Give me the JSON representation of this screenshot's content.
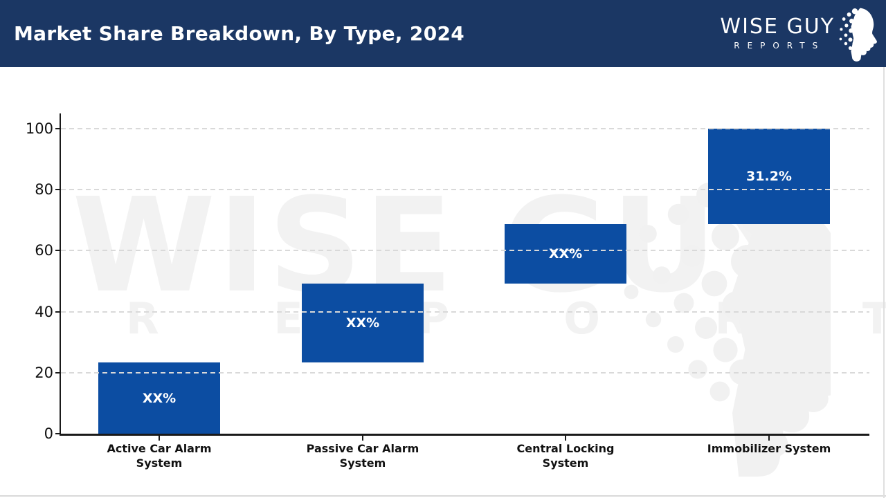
{
  "header": {
    "title": "Market Share Breakdown, By Type, 2024",
    "logo": {
      "name": "WISE GUY",
      "sub": "REPORTS"
    }
  },
  "watermark": {
    "name": "WISE GUY",
    "sub": "R E P O R T S"
  },
  "chart_data": {
    "type": "bar",
    "subtype": "waterfall",
    "title": "Market Share Breakdown, By Type, 2024",
    "unit": "%",
    "categories": [
      "Active Car Alarm System",
      "Passive Car Alarm System",
      "Central Locking System",
      "Immobilizer System"
    ],
    "category_label_lines": [
      [
        "Active Car Alarm",
        "System"
      ],
      [
        "Passive Car Alarm",
        "System"
      ],
      [
        "Central Locking",
        "System"
      ],
      [
        "Immobilizer System"
      ]
    ],
    "segments": [
      {
        "category": "Active Car Alarm System",
        "start": 0,
        "end": 23.3,
        "value": 23.3,
        "value_label": "XX%"
      },
      {
        "category": "Passive Car Alarm System",
        "start": 23.3,
        "end": 49.2,
        "value": 25.9,
        "value_label": "XX%"
      },
      {
        "category": "Central Locking System",
        "start": 49.2,
        "end": 68.8,
        "value": 19.6,
        "value_label": "XX%"
      },
      {
        "category": "Immobilizer System",
        "start": 68.8,
        "end": 100,
        "value": 31.2,
        "value_label": "31.2%"
      }
    ],
    "xlabel": "",
    "ylabel": "",
    "yticks": [
      0,
      20,
      40,
      60,
      80,
      100
    ],
    "ylim": [
      0,
      105
    ],
    "grid": {
      "axis": "y",
      "style": "dashed",
      "color": "#d9d9d9",
      "drawn_over_bars": true
    },
    "legend": "none",
    "colors": {
      "bar": "#0c4da2",
      "bar_label": "#ffffff",
      "header_bg": "#1b3764",
      "axis_text": "#111111",
      "spine": "#1a1a1a",
      "watermark": "#f2f2f2"
    }
  }
}
